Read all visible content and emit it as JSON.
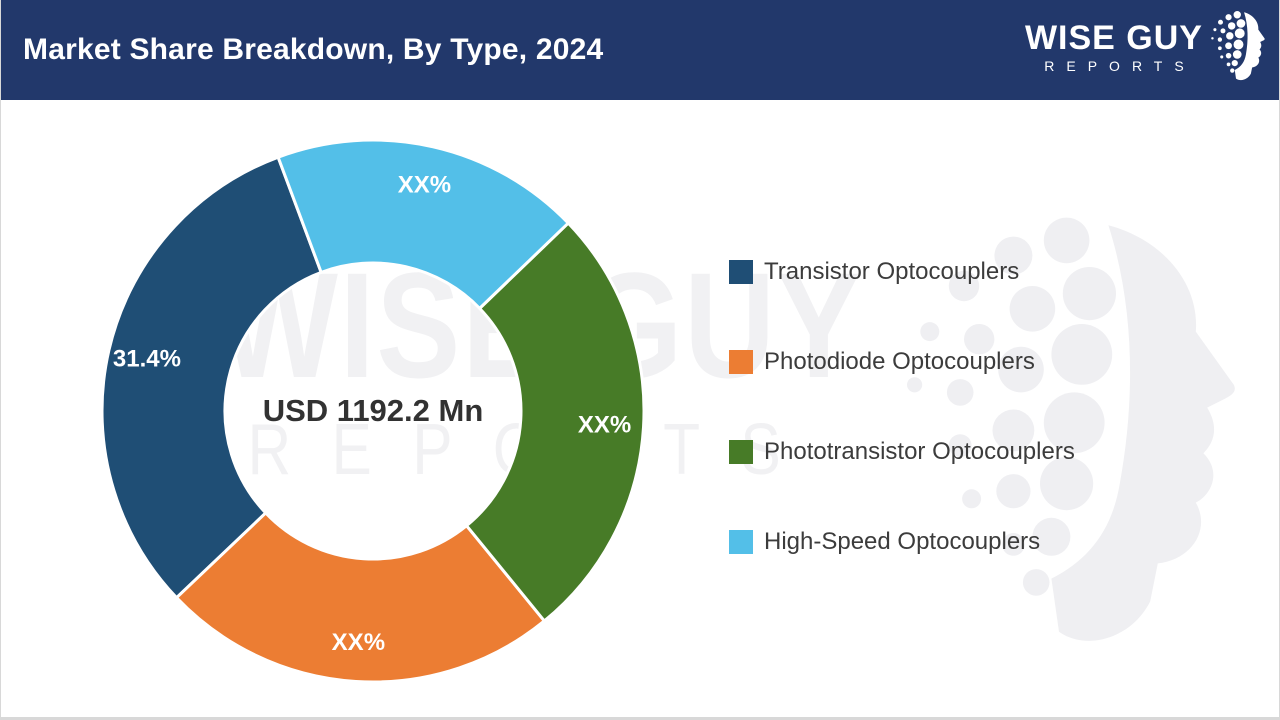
{
  "header": {
    "title": "Market Share Breakdown, By Type, 2024",
    "bg_color": "#22386B",
    "logo": {
      "line1": "WISE GUY",
      "line2": "REPORTS"
    }
  },
  "watermark": {
    "line1": "WISE GUY",
    "line2": "REPORTS"
  },
  "chart_data": {
    "type": "pie",
    "subtype": "donut",
    "title": "Market Share Breakdown, By Type, 2024",
    "center_text": "USD 1192.2 Mn",
    "start_angle_deg": 110.5,
    "direction": "counterclockwise",
    "categories": [
      "Transistor Optocouplers",
      "Photodiode Optocouplers",
      "Phototransistor Optocouplers",
      "High-Speed Optocouplers"
    ],
    "values_pct_est": [
      31.4,
      23.8,
      26.3,
      18.5
    ],
    "slice_labels": [
      "31.4%",
      "XX%",
      "XX%",
      "XX%"
    ],
    "colors": [
      "#1F4E75",
      "#EC7D33",
      "#477B27",
      "#53BFE8"
    ],
    "inner_radius_ratio": 0.545,
    "legend_position": "right",
    "grid": false
  },
  "legend": {
    "items": [
      {
        "label": "Transistor Optocouplers",
        "color": "#1F4E75"
      },
      {
        "label": "Photodiode Optocouplers",
        "color": "#EC7D33"
      },
      {
        "label": "Phototransistor Optocouplers",
        "color": "#477B27"
      },
      {
        "label": "High-Speed Optocouplers",
        "color": "#53BFE8"
      }
    ]
  }
}
